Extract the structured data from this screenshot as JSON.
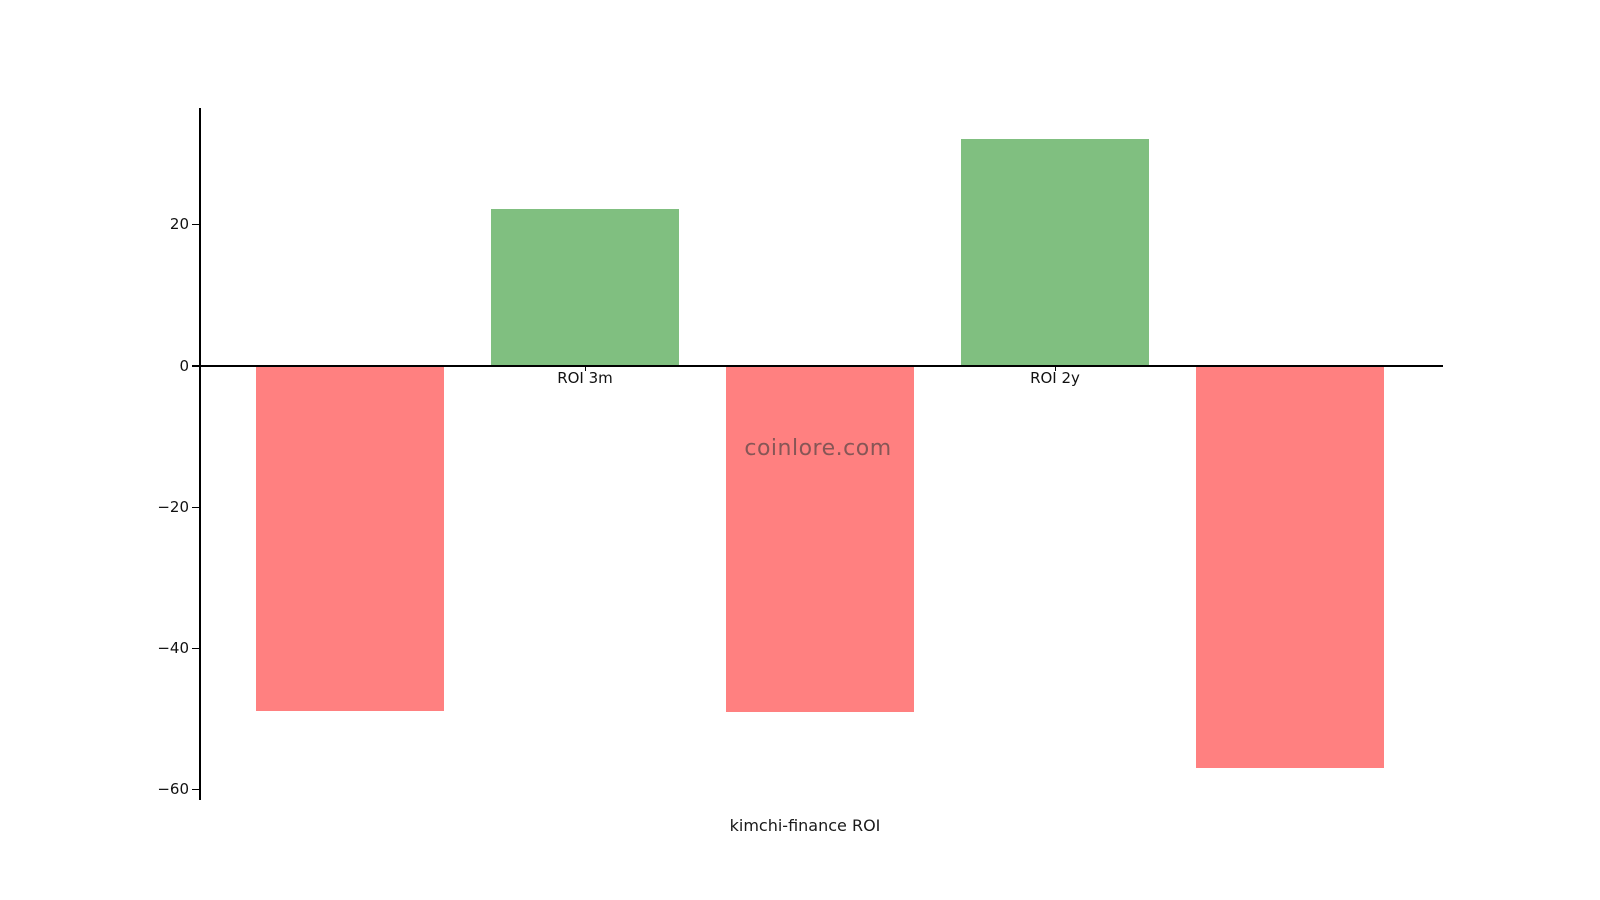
{
  "page": {
    "background_color": "#ffffff"
  },
  "watermark": {
    "text": "coinlore.com"
  },
  "chart_data": {
    "type": "bar",
    "title": "kimchi-finance ROI",
    "title_position": "bottom-center",
    "categories": [
      "",
      "ROI 3m",
      "",
      "ROI 2y",
      ""
    ],
    "values": [
      -48.9,
      22.2,
      -49,
      32.2,
      -57
    ],
    "series": [
      {
        "name": "kimchi-finance ROI",
        "values": [
          -48.9,
          22.2,
          -49,
          32.2,
          -57
        ]
      }
    ],
    "positive_color": "#80bf80",
    "negative_color": "#ff8080",
    "axis_color": "#000000",
    "y_ticks": [
      20,
      0,
      -20,
      -40,
      -60
    ],
    "y_tick_labels": [
      "20",
      "0",
      "−20",
      "−40",
      "−60"
    ],
    "ylim": [
      -61.5,
      36.5
    ],
    "grid": false,
    "legend": false,
    "xlabel": "",
    "ylabel": "",
    "note": "negative bars are red, positive bars are green; x tick labels under the red (negative) bars are hidden behind the bars"
  }
}
